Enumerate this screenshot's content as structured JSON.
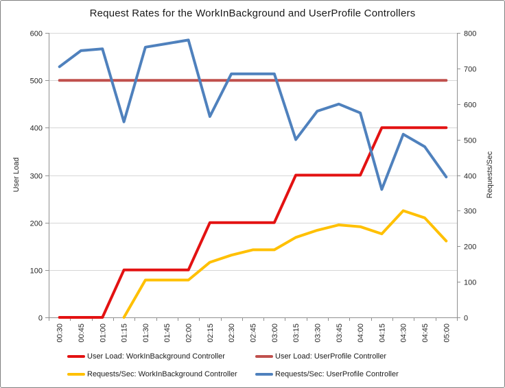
{
  "chart_data": {
    "type": "line",
    "title": "Request Rates for the WorkInBackground and UserProfile Controllers",
    "categories": [
      "00:30",
      "00:45",
      "01:00",
      "01:15",
      "01:30",
      "01:45",
      "02:00",
      "02:15",
      "02:30",
      "02:45",
      "03:00",
      "03:15",
      "03:30",
      "03:45",
      "04:00",
      "04:15",
      "04:30",
      "04:45",
      "05:00"
    ],
    "series": [
      {
        "name": "User Load: WorkInBackground Controller",
        "axis": "left",
        "color": "#e31212",
        "values": [
          0,
          0,
          0,
          100,
          100,
          100,
          100,
          200,
          200,
          200,
          200,
          300,
          300,
          300,
          300,
          400,
          400,
          400,
          400
        ]
      },
      {
        "name": "User Load: UserProfile Controller",
        "axis": "left",
        "color": "#c0504d",
        "values": [
          500,
          500,
          500,
          500,
          500,
          500,
          500,
          500,
          500,
          500,
          500,
          500,
          500,
          500,
          500,
          500,
          500,
          500,
          500
        ]
      },
      {
        "name": "Requests/Sec: WorkInBackground Controller",
        "axis": "right",
        "color": "#ffc000",
        "values": [
          null,
          null,
          null,
          0,
          105,
          105,
          105,
          155,
          175,
          190,
          190,
          225,
          245,
          260,
          255,
          235,
          300,
          280,
          215
        ]
      },
      {
        "name": "Requests/Sec: UserProfile Controller",
        "axis": "right",
        "color": "#4f81bd",
        "values": [
          705,
          750,
          755,
          550,
          760,
          770,
          780,
          565,
          685,
          685,
          685,
          500,
          580,
          600,
          575,
          360,
          515,
          480,
          395
        ]
      }
    ],
    "left_axis": {
      "label": "User Load",
      "min": 0,
      "max": 600,
      "ticks": [
        600,
        500,
        400,
        300,
        200,
        100,
        0
      ]
    },
    "right_axis": {
      "label": "Requests/Sec",
      "min": 0,
      "max": 800,
      "ticks": [
        800,
        700,
        600,
        500,
        400,
        300,
        200,
        100,
        0
      ]
    },
    "grid": true,
    "legend_position": "bottom"
  },
  "colors": {
    "gridline": "#d6d6d6",
    "axis_line": "#8f8f8f",
    "tick_text": "#262626"
  }
}
